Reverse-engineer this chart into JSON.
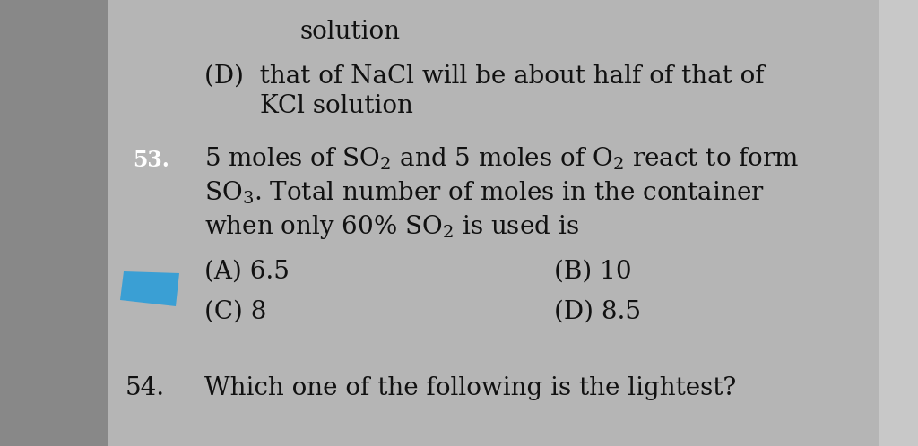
{
  "bg_color": "#a8a8a8",
  "text_color": "#111111",
  "badge_color": "#3a9fd4",
  "badge_text_color": "#ffffff",
  "solution_text": "solution",
  "line_d1": "(D)  that of NaCl will be about half of that of",
  "line_d2": "       KCl solution",
  "q53_badge": "53.",
  "q53_line1": "$\\mathbf{5\\ moles\\ of\\ SO_2\\ and\\ 5\\ moles\\ of\\ O_2\\ react\\ to\\ form}$",
  "q53_line2": "$\\mathbf{SO_3}$\\mathbf{. Total number of moles in the container}",
  "q53_line3": "when only 60% $\\mathbf{SO_2}$ is used is",
  "opt_A": "(A) 6.5",
  "opt_B": "(B) 10",
  "opt_C": "(C) 8",
  "opt_D": "(D) 8.5",
  "q54_num": "54.",
  "q54_text": "Which one of the following is the lightest?",
  "font_size_main": 20,
  "font_size_badge": 17,
  "font_size_sub": 14
}
